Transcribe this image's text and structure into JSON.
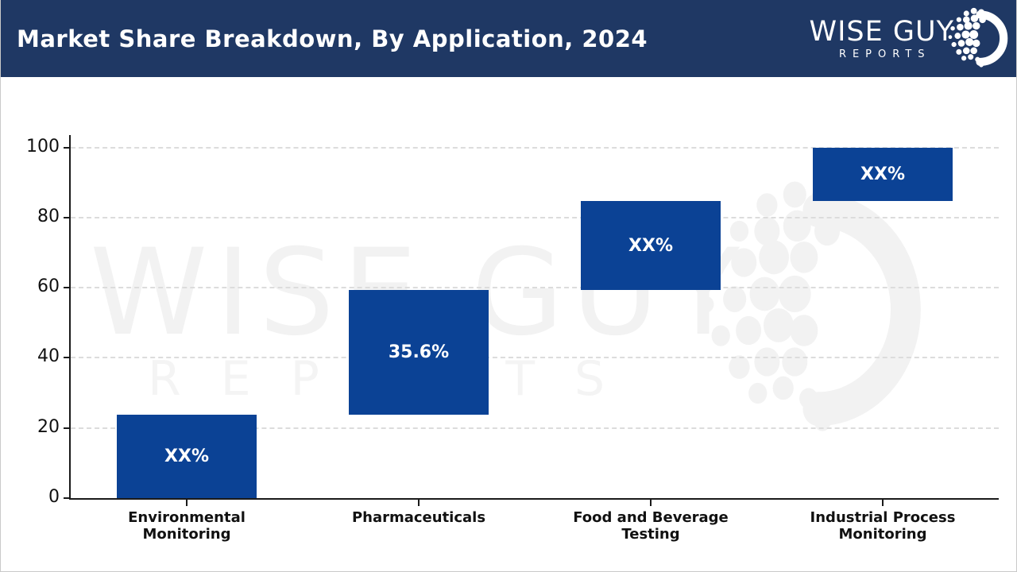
{
  "header": {
    "title": "Market Share Breakdown, By Application, 2024",
    "bg_color": "#1f3864",
    "logo": {
      "brand": "WISE GUY",
      "sub": "REPORTS",
      "head_icon": "dotted-head-profile"
    }
  },
  "watermark": {
    "brand": "WISE GUY",
    "sub": "REPORTS"
  },
  "chart_data": {
    "type": "bar",
    "subtype": "waterfall",
    "title": "Market Share Breakdown, By Application, 2024",
    "categories": [
      "Environmental\nMonitoring",
      "Pharmaceuticals",
      "Food and Beverage\nTesting",
      "Industrial Process\nMonitoring"
    ],
    "series": [
      {
        "name": "Market Share",
        "bases": [
          0,
          23.7,
          59.3,
          84.7
        ],
        "values": [
          23.7,
          35.6,
          25.4,
          15.3
        ],
        "display_labels": [
          "XX%",
          "35.6%",
          "XX%",
          "XX%"
        ]
      }
    ],
    "xlabel": "",
    "ylabel": "",
    "ylim": [
      0,
      100
    ],
    "yticks": [
      0,
      20,
      40,
      60,
      80,
      100
    ],
    "grid": "horizontal-dashed",
    "legend": "none",
    "bar_color": "#0b4295",
    "bar_label_color": "#ffffff",
    "axis_color": "#1a1a1a",
    "gridline_color": "#dcdcdc"
  }
}
